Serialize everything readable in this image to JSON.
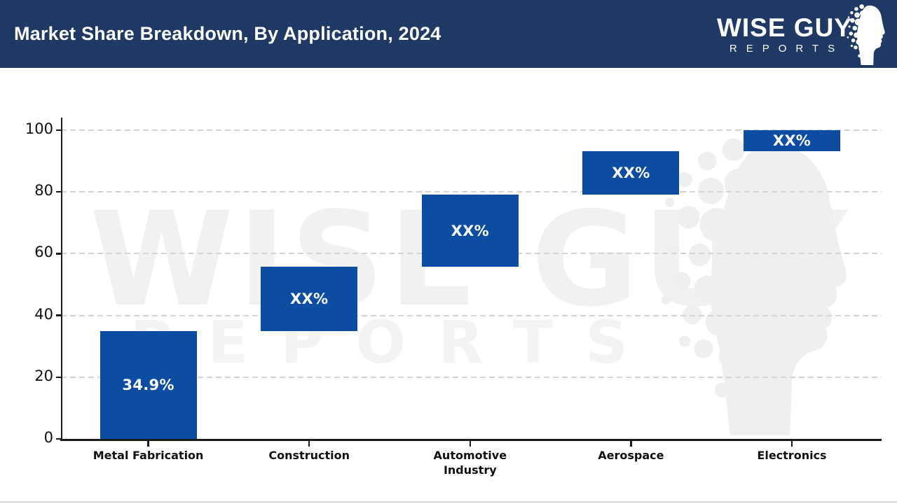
{
  "header": {
    "title": "Market Share Breakdown, By Application, 2024",
    "logo": {
      "line1": "WISE GUY",
      "line2": "REPORTS"
    },
    "background_color": "#1f3864"
  },
  "watermark": {
    "line1": "WISE GUY",
    "line2": "REPORTS"
  },
  "chart_data": {
    "type": "bar",
    "subtype": "waterfall",
    "title": "Market Share Breakdown, By Application, 2024",
    "categories": [
      "Metal Fabrication",
      "Construction",
      "Automotive Industry",
      "Aerospace",
      "Electronics"
    ],
    "segments": [
      {
        "category": "Metal Fabrication",
        "axis_label": "Metal Fabrication",
        "start": 0,
        "end": 34.9,
        "value": 34.9,
        "label": "34.9%"
      },
      {
        "category": "Construction",
        "axis_label": "Construction",
        "start": 34.9,
        "end": 55.8,
        "value": 20.9,
        "label": "XX%"
      },
      {
        "category": "Automotive Industry",
        "axis_label": "Automotive\nIndustry",
        "start": 55.8,
        "end": 79.1,
        "value": 23.3,
        "label": "XX%"
      },
      {
        "category": "Aerospace",
        "axis_label": "Aerospace",
        "start": 79.1,
        "end": 93.3,
        "value": 14.2,
        "label": "XX%"
      },
      {
        "category": "Electronics",
        "axis_label": "Electronics",
        "start": 93.3,
        "end": 100,
        "value": 6.7,
        "label": "XX%"
      }
    ],
    "y_ticks": [
      0,
      20,
      40,
      60,
      80,
      100
    ],
    "ylim": [
      0,
      100
    ],
    "xlabel": "",
    "ylabel": "",
    "legend": "none",
    "grid": "horizontal-dashed",
    "bar_color": "#0c4da2",
    "axis_color": "#1a1a1a",
    "grid_color": "#d5d5d5"
  }
}
